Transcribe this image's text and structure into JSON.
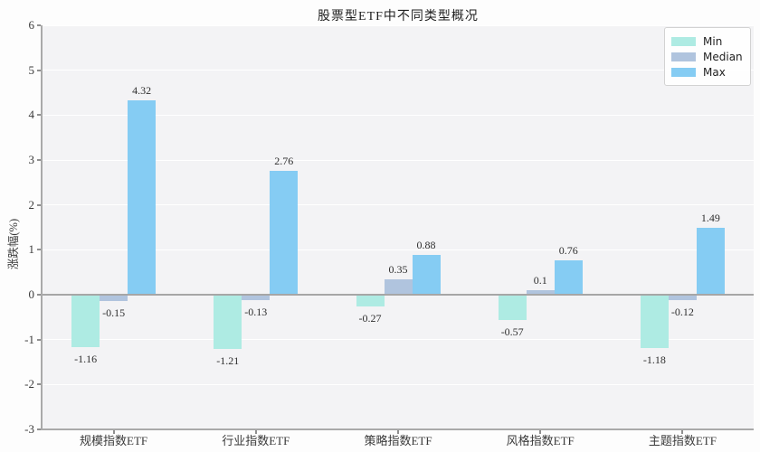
{
  "chart_data": {
    "type": "bar",
    "title": "股票型ETF中不同类型概况",
    "xlabel": "",
    "ylabel": "涨跌幅(%)",
    "categories": [
      "规模指数ETF",
      "行业指数ETF",
      "策略指数ETF",
      "风格指数ETF",
      "主题指数ETF"
    ],
    "series": [
      {
        "name": "Min",
        "color": "#aeebe3",
        "values": [
          -1.16,
          -1.21,
          -0.27,
          -0.57,
          -1.18
        ]
      },
      {
        "name": "Median",
        "color": "#b0c4de",
        "values": [
          -0.15,
          -0.13,
          0.35,
          0.1,
          -0.12
        ]
      },
      {
        "name": "Max",
        "color": "#85ccf3",
        "values": [
          4.32,
          2.76,
          0.88,
          0.76,
          1.49
        ]
      }
    ],
    "ylim": [
      -3,
      6
    ],
    "yticks": [
      -3,
      -2,
      -1,
      0,
      1,
      2,
      3,
      4,
      5,
      6
    ],
    "grid": true,
    "legend_position": "top-right"
  },
  "style_colors": {
    "plot_background": "#f3f3f5",
    "figure_background": "#fdfdfd",
    "gridline": "#ffffff",
    "zero_line": "#a6a6a6",
    "spine": "#a9a9a9",
    "text": "#2e2e2e"
  }
}
